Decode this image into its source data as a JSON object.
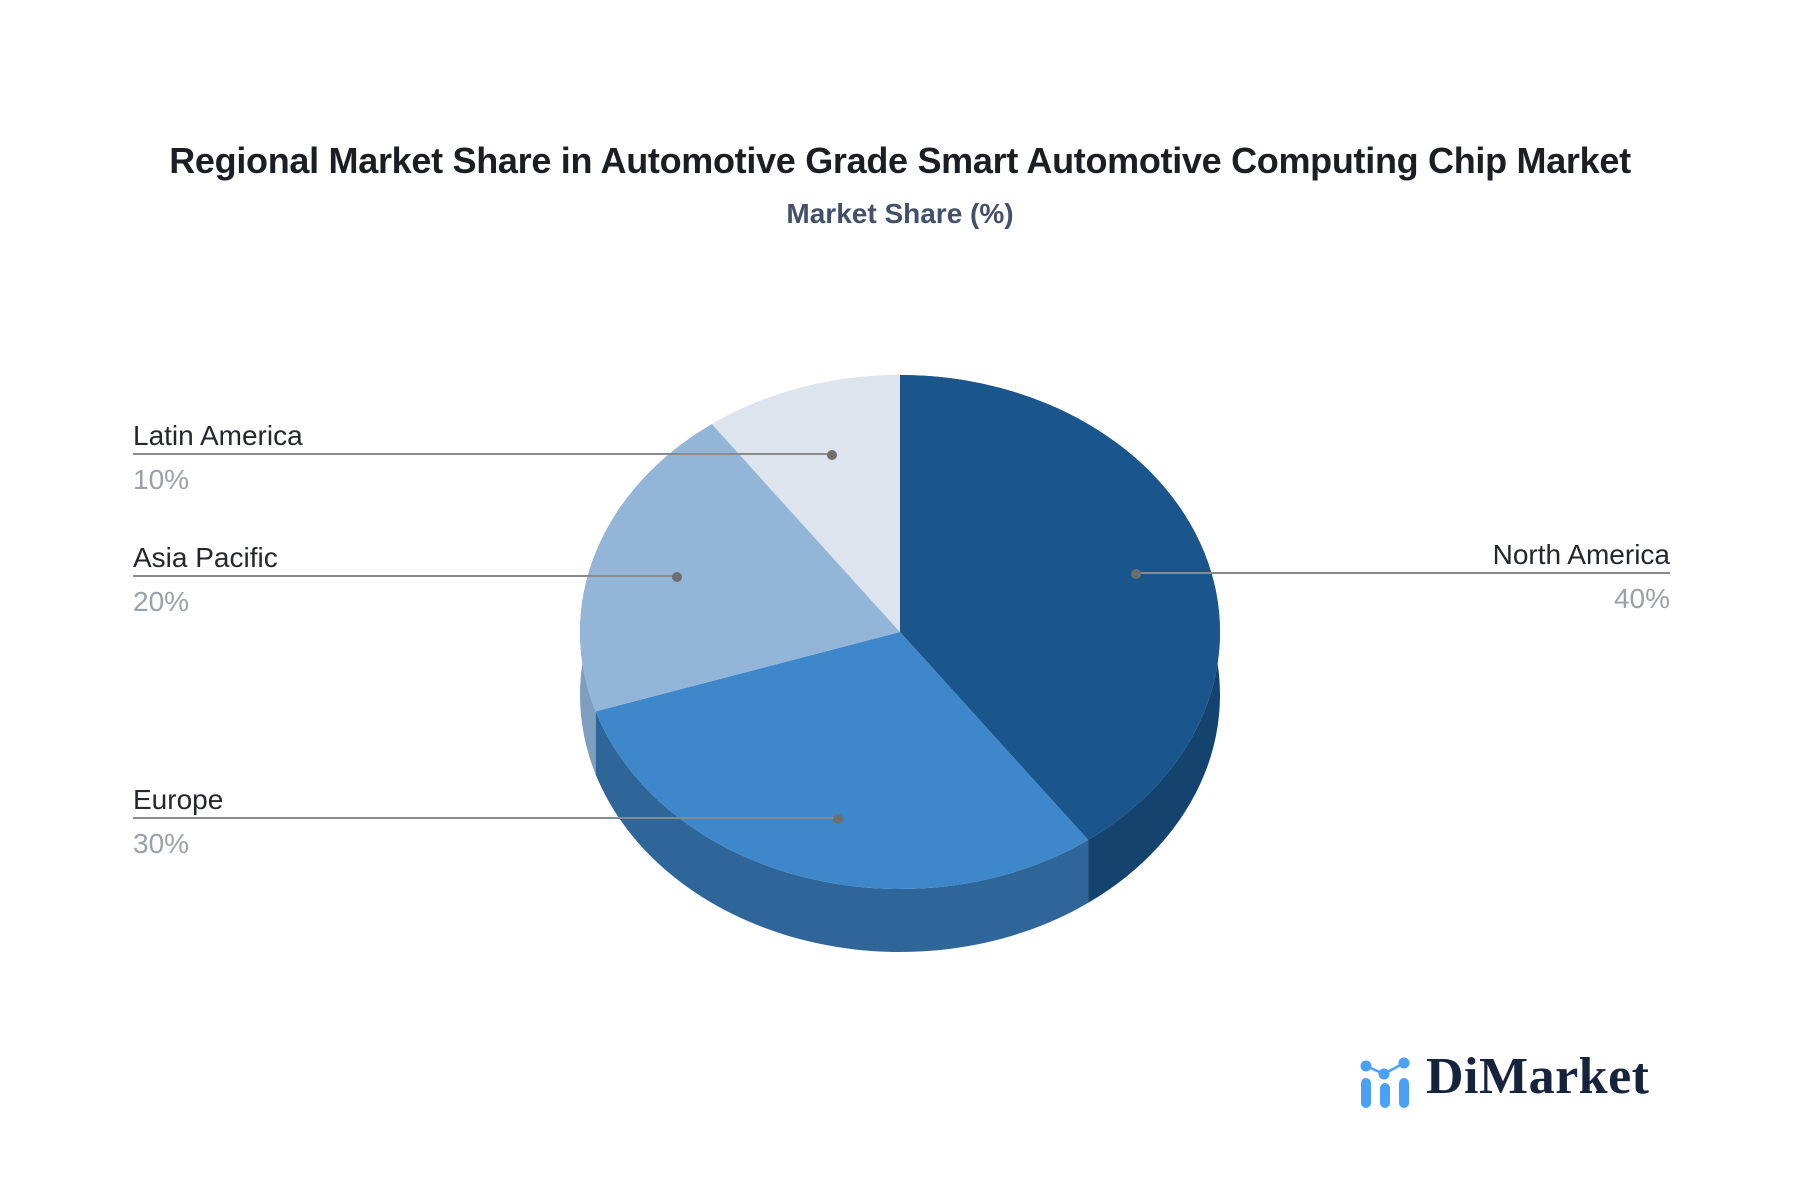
{
  "header": {
    "title": "Regional Market Share in Automotive Grade Smart Automotive Computing Chip Market",
    "subtitle": "Market Share (%)"
  },
  "chart_data": {
    "type": "pie",
    "style": "3d",
    "title": "Regional Market Share in Automotive Grade Smart Automotive Computing Chip Market",
    "subtitle": "Market Share (%)",
    "unit": "%",
    "direction": "clockwise",
    "start_angle_deg": 0,
    "legend_position": "callout-labels",
    "slices": [
      {
        "label": "North America",
        "value": 40,
        "pct_label": "40%",
        "color": "#1a568c",
        "side_color": "#14436d"
      },
      {
        "label": "Europe",
        "value": 30,
        "pct_label": "30%",
        "color": "#3d87ca",
        "side_color": "#2f6699"
      },
      {
        "label": "Asia Pacific",
        "value": 20,
        "pct_label": "20%",
        "color": "#92b5d8",
        "side_color": "#7f9dbe"
      },
      {
        "label": "Latin America",
        "value": 10,
        "pct_label": "10%",
        "color": "#dde4ee",
        "side_color": "#c2cbd9"
      }
    ]
  },
  "watermark": {
    "brand": "DiMarket",
    "icon": "bar-line-chart-icon",
    "icon_color": "#4aa0f2",
    "text_color": "#16233c"
  },
  "colors": {
    "background": "#ffffff",
    "title": "#1b1f24",
    "subtitle": "#42506a",
    "label": "#23282e",
    "percent": "#9aa1a9",
    "leader_line": "#8a8a8a",
    "leader_dot": "#6f6f6f"
  }
}
